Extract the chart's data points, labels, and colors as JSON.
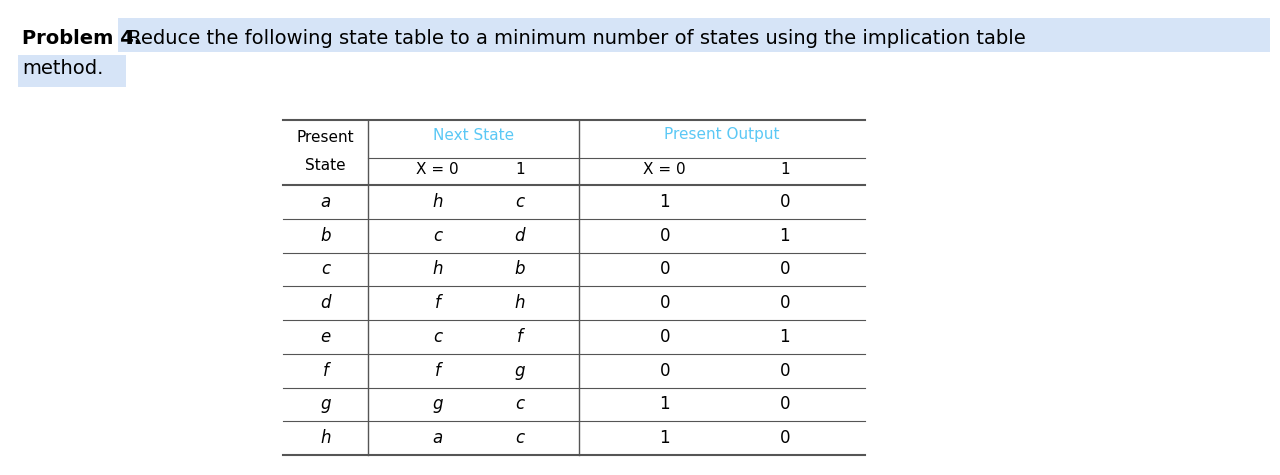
{
  "problem_bold": "Problem 4.",
  "problem_rest": " Reduce the following state table to a minimum number of states using the implication table",
  "problem_line2": "method.",
  "highlight_color": "#d6e4f7",
  "header_color": "#5bc8f5",
  "table_states": [
    "a",
    "b",
    "c",
    "d",
    "e",
    "f",
    "g",
    "h"
  ],
  "next_state_x0": [
    "h",
    "c",
    "h",
    "f",
    "c",
    "f",
    "g",
    "a"
  ],
  "next_state_x1": [
    "c",
    "d",
    "b",
    "h",
    "f",
    "g",
    "c",
    "c"
  ],
  "output_x0": [
    "1",
    "0",
    "0",
    "0",
    "0",
    "0",
    "1",
    "1"
  ],
  "output_x1": [
    "0",
    "1",
    "0",
    "0",
    "1",
    "0",
    "0",
    "0"
  ],
  "bg_color": "#ffffff",
  "text_color": "#000000"
}
